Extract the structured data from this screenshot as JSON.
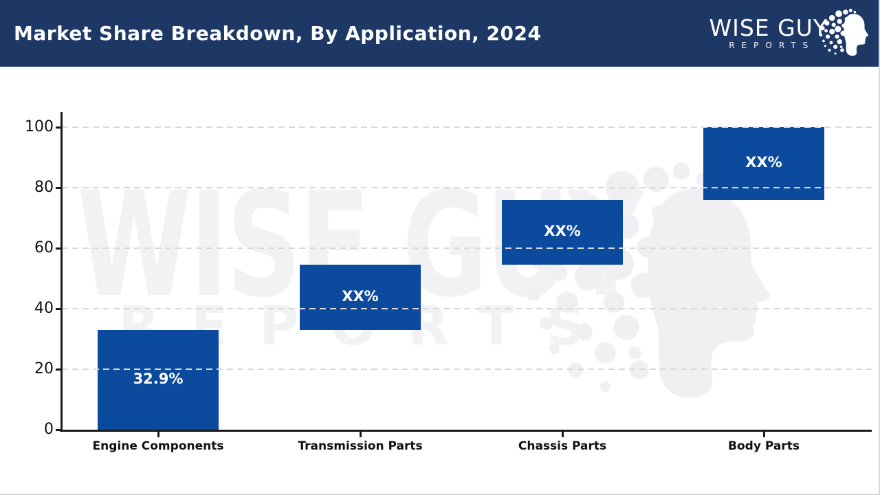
{
  "header": {
    "title": "Market Share Breakdown, By Application, 2024",
    "bg_color": "#1e3866"
  },
  "logo": {
    "line1": "WISE GUY",
    "line2": "REPORTS"
  },
  "watermark": {
    "line1": "WISE GUY",
    "line2": "REPORTS"
  },
  "chart_data": {
    "type": "bar",
    "subtype": "waterfall",
    "title": "Market Share Breakdown, By Application, 2024",
    "xlabel": "",
    "ylabel": "",
    "categories": [
      "Engine Components",
      "Transmission Parts",
      "Chassis Parts",
      "Body Parts"
    ],
    "segments": [
      {
        "category": "Engine Components",
        "start": 0,
        "end": 32.9,
        "value": 32.9,
        "label": "32.9%"
      },
      {
        "category": "Transmission Parts",
        "start": 32.9,
        "end": 54.5,
        "value": 21.6,
        "label": "XX%"
      },
      {
        "category": "Chassis Parts",
        "start": 54.5,
        "end": 75.8,
        "value": 21.3,
        "label": "XX%"
      },
      {
        "category": "Body Parts",
        "start": 75.8,
        "end": 100,
        "value": 24.2,
        "label": "XX%"
      }
    ],
    "yticks": [
      0,
      20,
      40,
      60,
      80,
      100
    ],
    "ylim": [
      0,
      105
    ],
    "grid": "dashed-horizontal-above-bars",
    "legend": "none",
    "bar_color": "#0c4a9e",
    "bar_label_color": "#ffffff",
    "axis_color": "#1a1a1a",
    "gridline_color": "#d9d9d9",
    "header_color": "#1e3866",
    "watermark_color": "#f2f2f5"
  }
}
